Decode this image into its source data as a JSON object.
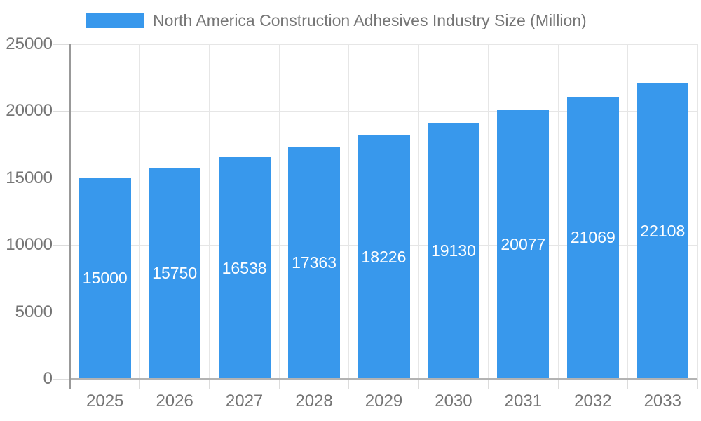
{
  "chart_data": {
    "type": "bar",
    "title": "",
    "legend": {
      "position": "top-left",
      "label": "North America Construction Adhesives Industry Size (Million)"
    },
    "categories": [
      "2025",
      "2026",
      "2027",
      "2028",
      "2029",
      "2030",
      "2031",
      "2032",
      "2033"
    ],
    "series": [
      {
        "name": "North America Construction Adhesives Industry Size (Million)",
        "values": [
          15000,
          15750,
          16538,
          17363,
          18226,
          19130,
          20077,
          21069,
          22108
        ]
      }
    ],
    "value_labels": [
      "15000",
      "15750",
      "16538",
      "17363",
      "18226",
      "19130",
      "20077",
      "21069",
      "22108"
    ],
    "xlabel": "",
    "ylabel": "",
    "ylim": [
      0,
      25000
    ],
    "ytick_step": 5000,
    "yticks": [
      "0",
      "5000",
      "10000",
      "15000",
      "20000",
      "25000"
    ],
    "grid": true,
    "colors": {
      "bar": "#3898EC",
      "grid": "#E6E6E6",
      "tick": "#DCDCDC",
      "axis": "#999999",
      "baseline": "#B3B3B3",
      "text": "#757575",
      "bar_label": "#FFFFFF",
      "background": "#FFFFFF"
    }
  }
}
